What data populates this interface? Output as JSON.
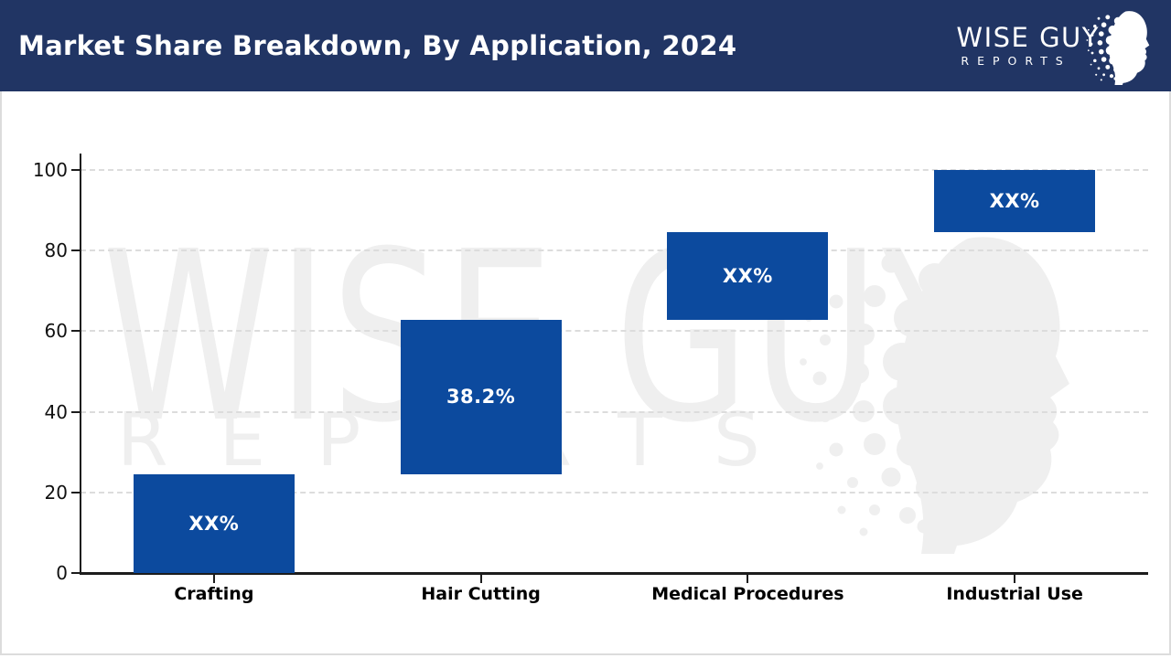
{
  "header": {
    "title": "Market Share Breakdown, By Application, 2024",
    "logo": {
      "line1": "WISE GUY",
      "line2": "REPORTS"
    }
  },
  "watermark": {
    "line1": "WISE GUY",
    "line2": "REPORTS"
  },
  "colors": {
    "header_bg": "#213564",
    "bar": "#0c4a9e",
    "bar_label": "#ffffff",
    "grid": "#dcdcdc",
    "axis": "#1c1c1c",
    "watermark": "#efefef"
  },
  "chart_data": {
    "type": "bar",
    "subtype": "floating-waterfall",
    "title": "Market Share Breakdown, By Application, 2024",
    "categories": [
      "Crafting",
      "Hair Cutting",
      "Medical Procedures",
      "Industrial Use"
    ],
    "segments": [
      {
        "category": "Crafting",
        "start": 0,
        "end": 24.6,
        "label": "XX%"
      },
      {
        "category": "Hair Cutting",
        "start": 24.6,
        "end": 62.8,
        "label": "38.2%",
        "value": 38.2
      },
      {
        "category": "Medical Procedures",
        "start": 62.8,
        "end": 84.6,
        "label": "XX%"
      },
      {
        "category": "Industrial Use",
        "start": 84.6,
        "end": 100,
        "label": "XX%"
      }
    ],
    "yticks": [
      0,
      20,
      40,
      60,
      80,
      100
    ],
    "ylim": [
      0,
      104
    ],
    "xlabel": "",
    "ylabel": "",
    "grid": "dashed-horizontal",
    "legend": "none"
  }
}
